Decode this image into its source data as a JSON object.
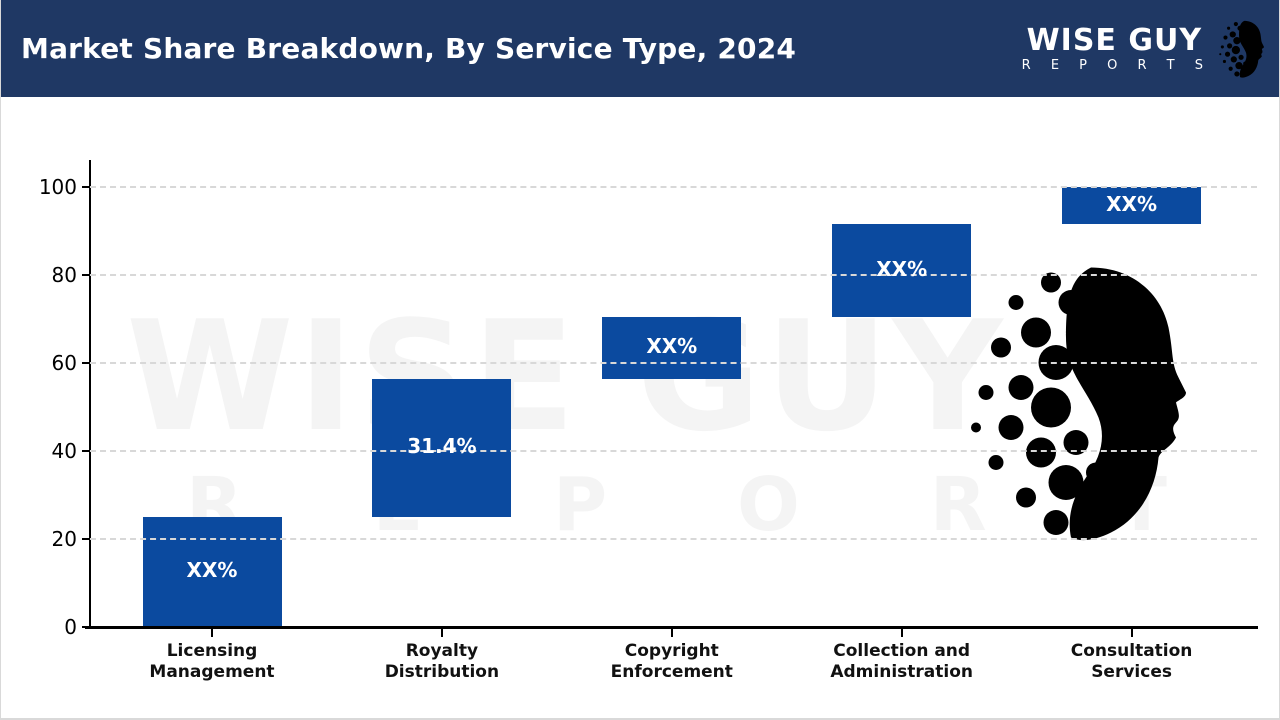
{
  "header": {
    "title": "Market Share Breakdown, By Service Type, 2024",
    "bg_color": "#1f3864",
    "logo": {
      "line1": "WISE GUY",
      "line2": "R E P O R T S"
    }
  },
  "watermark": {
    "line1": "WISE GUY",
    "line2": "R E P O R T S"
  },
  "chart_data": {
    "type": "bar",
    "subtype": "waterfall",
    "title": "Market Share Breakdown, By Service Type, 2024",
    "xlabel": "",
    "ylabel": "",
    "ylim": [
      0,
      105
    ],
    "y_ticks": [
      0,
      20,
      40,
      60,
      80,
      100
    ],
    "grid": "horizontal-dashed",
    "gridline_color": "#d8d8d8",
    "axis_color": "#000000",
    "bar_color": "#0b4a9f",
    "bar_label_color": "#ffffff",
    "legend": "none",
    "categories": [
      "Licensing Management",
      "Royalty Distribution",
      "Copyright Enforcement",
      "Collection and Administration",
      "Consultation Services"
    ],
    "segments": [
      {
        "category": "Licensing Management",
        "category_lines": [
          "Licensing",
          "Management"
        ],
        "start": 0,
        "end": 25,
        "value": 25,
        "bar_label": "XX%"
      },
      {
        "category": "Royalty Distribution",
        "category_lines": [
          "Royalty",
          "Distribution"
        ],
        "start": 25,
        "end": 56.4,
        "value": 31.4,
        "bar_label": "31.4%"
      },
      {
        "category": "Copyright Enforcement",
        "category_lines": [
          "Copyright",
          "Enforcement"
        ],
        "start": 56.4,
        "end": 70.5,
        "value": 14.1,
        "bar_label": "XX%"
      },
      {
        "category": "Collection and Administration",
        "category_lines": [
          "Collection and",
          "Administration"
        ],
        "start": 70.5,
        "end": 91.5,
        "value": 21,
        "bar_label": "XX%"
      },
      {
        "category": "Consultation Services",
        "category_lines": [
          "Consultation",
          "Services"
        ],
        "start": 91.5,
        "end": 100,
        "value": 8.5,
        "bar_label": "XX%"
      }
    ]
  }
}
